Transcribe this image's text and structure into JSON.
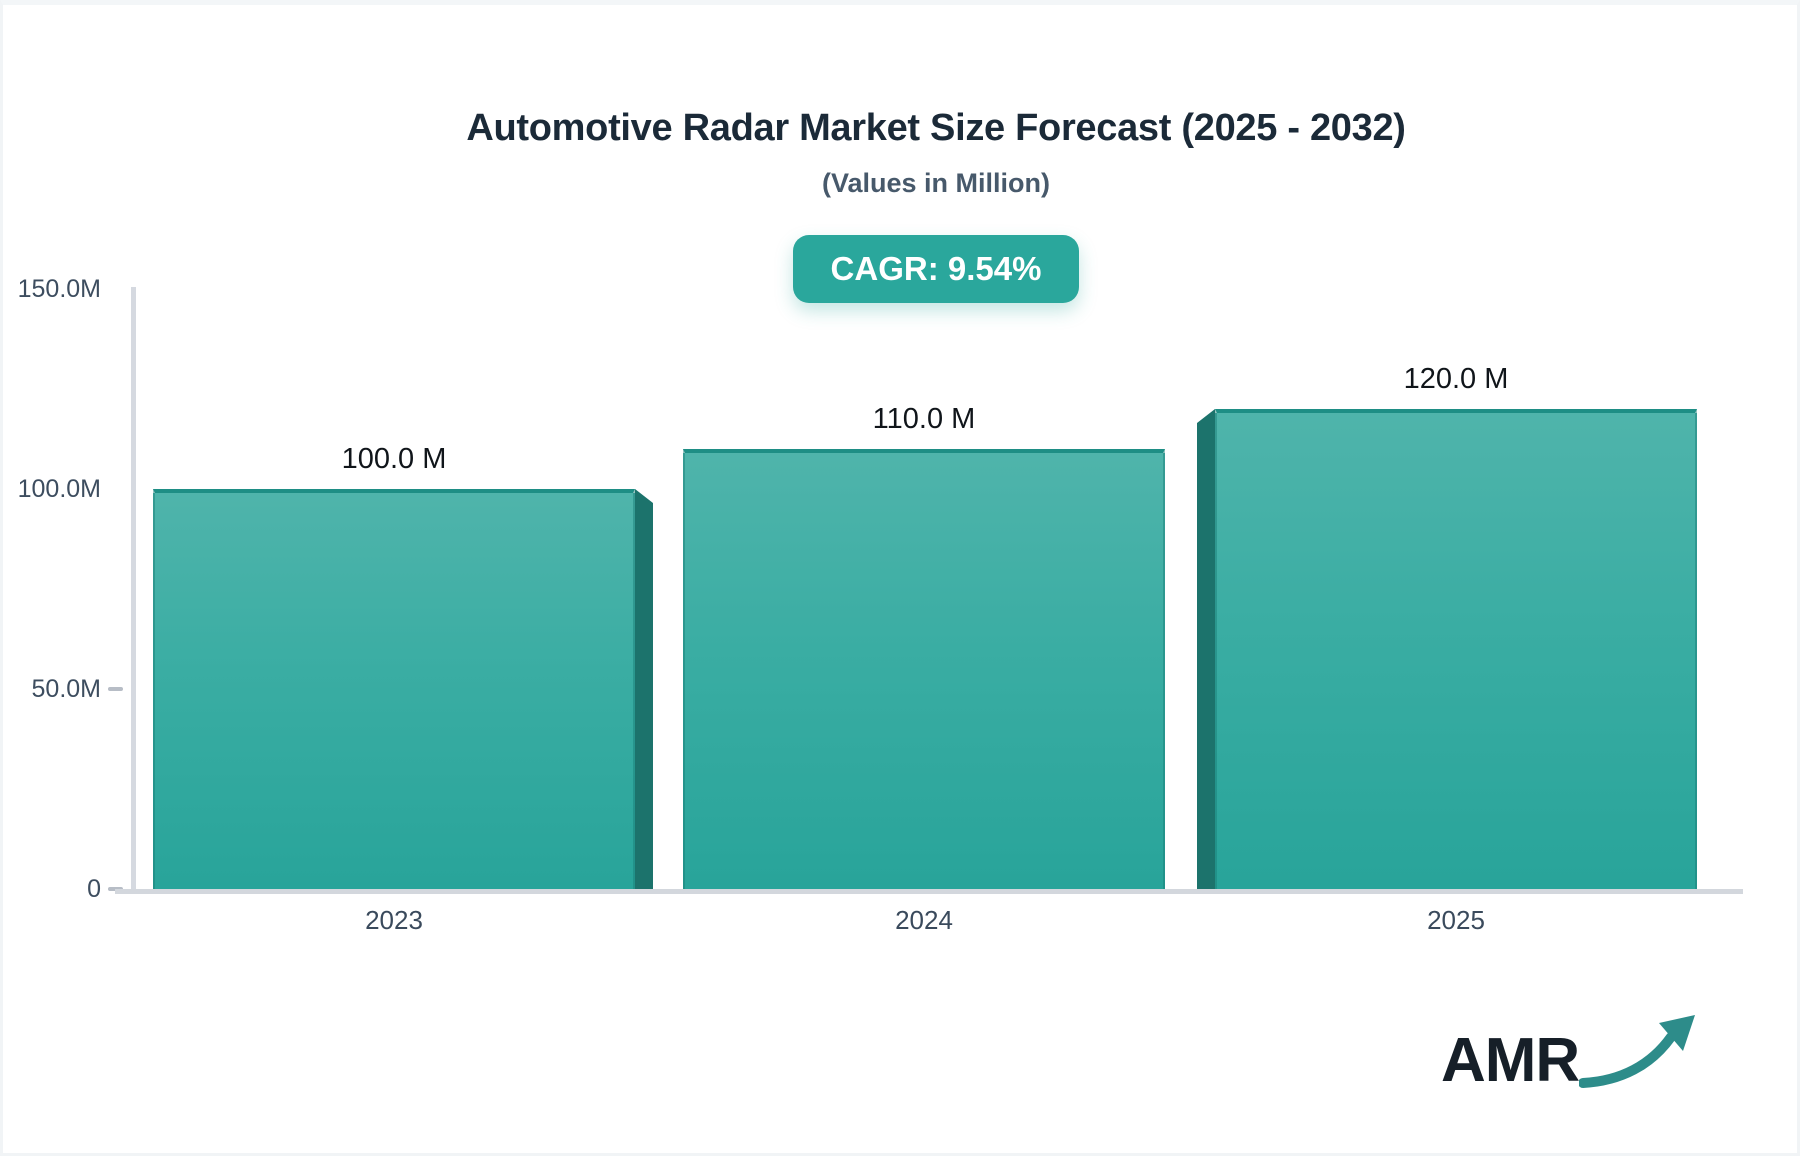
{
  "page": {
    "background": "#ffffff"
  },
  "header": {
    "title": "Automotive Radar Market Size Forecast (2025 - 2032)",
    "subtitle": "(Values in Million)",
    "badge": {
      "label": "CAGR: 9.54%",
      "bg_color": "#2aa79c",
      "text_color": "#ffffff"
    }
  },
  "chart_data": {
    "type": "bar",
    "title": "Automotive Radar Market Size Forecast (2025 - 2032)",
    "subtitle": "(Values in Million)",
    "unit": "Million",
    "categories": [
      "2023",
      "2024",
      "2025"
    ],
    "values": [
      100.0,
      110.0,
      120.0
    ],
    "value_labels": [
      "100.0 M",
      "110.0 M",
      "120.0 M"
    ],
    "ylim": [
      0,
      150
    ],
    "yticks": [
      {
        "label": "150.0M",
        "value": 150,
        "dash": false
      },
      {
        "label": "100.0M",
        "value": 100,
        "dash": false
      },
      {
        "label": "50.0M",
        "value": 50,
        "dash": true
      },
      {
        "label": "0",
        "value": 0,
        "dash": true
      }
    ],
    "grid": false,
    "legend": false,
    "bar_3d_bevels": [
      "right",
      "none",
      "left"
    ],
    "colors": {
      "bar_gradient_top": "#4fb4ab",
      "bar_gradient_bottom": "#28a49a",
      "bar_top_edge": "#1e8e85",
      "bar_side_face": "#1c736c",
      "axis_line": "#d5d9e0",
      "tick_text": "#3d4d5f",
      "value_text": "#10151a"
    }
  },
  "logo": {
    "text": "AMR",
    "text_color": "#161f28",
    "arrow_icon_color": "#2d8c8a"
  }
}
